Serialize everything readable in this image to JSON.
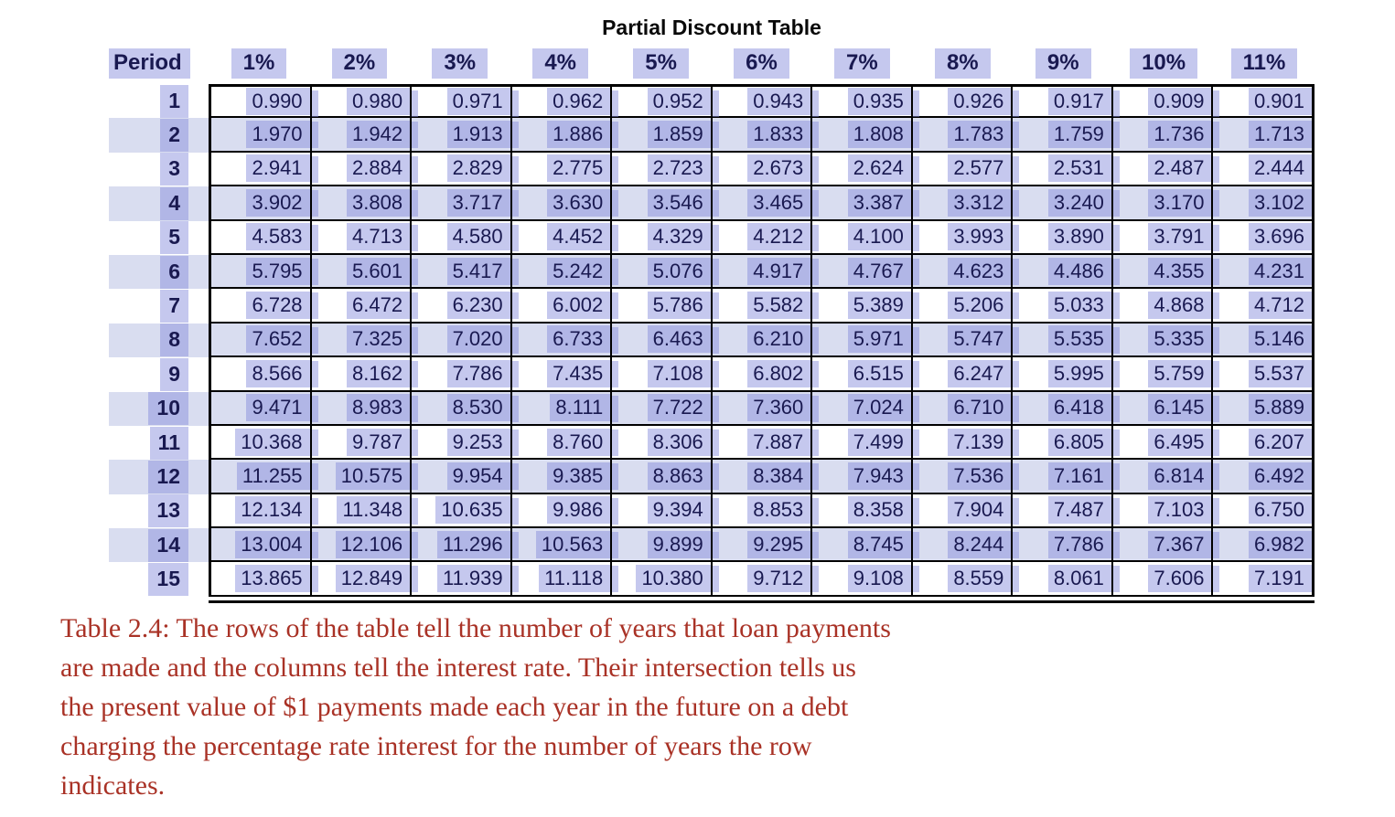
{
  "title": "Partial Discount Table",
  "table": {
    "period_header": "Period",
    "rate_headers": [
      "1%",
      "2%",
      "3%",
      "4%",
      "5%",
      "6%",
      "7%",
      "8%",
      "9%",
      "10%",
      "11%"
    ],
    "rows": [
      {
        "period": "1",
        "values": [
          "0.990",
          "0.980",
          "0.971",
          "0.962",
          "0.952",
          "0.943",
          "0.935",
          "0.926",
          "0.917",
          "0.909",
          "0.901"
        ]
      },
      {
        "period": "2",
        "values": [
          "1.970",
          "1.942",
          "1.913",
          "1.886",
          "1.859",
          "1.833",
          "1.808",
          "1.783",
          "1.759",
          "1.736",
          "1.713"
        ]
      },
      {
        "period": "3",
        "values": [
          "2.941",
          "2.884",
          "2.829",
          "2.775",
          "2.723",
          "2.673",
          "2.624",
          "2.577",
          "2.531",
          "2.487",
          "2.444"
        ]
      },
      {
        "period": "4",
        "values": [
          "3.902",
          "3.808",
          "3.717",
          "3.630",
          "3.546",
          "3.465",
          "3.387",
          "3.312",
          "3.240",
          "3.170",
          "3.102"
        ]
      },
      {
        "period": "5",
        "values": [
          "4.583",
          "4.713",
          "4.580",
          "4.452",
          "4.329",
          "4.212",
          "4.100",
          "3.993",
          "3.890",
          "3.791",
          "3.696"
        ]
      },
      {
        "period": "6",
        "values": [
          "5.795",
          "5.601",
          "5.417",
          "5.242",
          "5.076",
          "4.917",
          "4.767",
          "4.623",
          "4.486",
          "4.355",
          "4.231"
        ]
      },
      {
        "period": "7",
        "values": [
          "6.728",
          "6.472",
          "6.230",
          "6.002",
          "5.786",
          "5.582",
          "5.389",
          "5.206",
          "5.033",
          "4.868",
          "4.712"
        ]
      },
      {
        "period": "8",
        "values": [
          "7.652",
          "7.325",
          "7.020",
          "6.733",
          "6.463",
          "6.210",
          "5.971",
          "5.747",
          "5.535",
          "5.335",
          "5.146"
        ]
      },
      {
        "period": "9",
        "values": [
          "8.566",
          "8.162",
          "7.786",
          "7.435",
          "7.108",
          "6.802",
          "6.515",
          "6.247",
          "5.995",
          "5.759",
          "5.537"
        ]
      },
      {
        "period": "10",
        "values": [
          "9.471",
          "8.983",
          "8.530",
          "8.111",
          "7.722",
          "7.360",
          "7.024",
          "6.710",
          "6.418",
          "6.145",
          "5.889"
        ]
      },
      {
        "period": "11",
        "values": [
          "10.368",
          "9.787",
          "9.253",
          "8.760",
          "8.306",
          "7.887",
          "7.499",
          "7.139",
          "6.805",
          "6.495",
          "6.207"
        ]
      },
      {
        "period": "12",
        "values": [
          "11.255",
          "10.575",
          "9.954",
          "9.385",
          "8.863",
          "8.384",
          "7.943",
          "7.536",
          "7.161",
          "6.814",
          "6.492"
        ]
      },
      {
        "period": "13",
        "values": [
          "12.134",
          "11.348",
          "10.635",
          "9.986",
          "9.394",
          "8.853",
          "8.358",
          "7.904",
          "7.487",
          "7.103",
          "6.750"
        ]
      },
      {
        "period": "14",
        "values": [
          "13.004",
          "12.106",
          "11.296",
          "10.563",
          "9.899",
          "9.295",
          "8.745",
          "8.244",
          "7.786",
          "7.367",
          "6.982"
        ]
      },
      {
        "period": "15",
        "values": [
          "13.865",
          "12.849",
          "11.939",
          "11.118",
          "10.380",
          "9.712",
          "9.108",
          "8.559",
          "8.061",
          "7.606",
          "7.191"
        ]
      }
    ]
  },
  "caption": {
    "lines": [
      "Table 2.4: The rows of the table tell the number of years that loan payments",
      "are made and the columns tell the interest rate. Their intersection tells us",
      "the present value of $1 payments made each year in the future on a debt",
      "charging the percentage rate interest for the number of years the row",
      "indicates."
    ]
  },
  "colors": {
    "highlight": "rgba(133,140,219,0.48)",
    "row_band": "#d9ddf0",
    "value_text": "#191950",
    "caption_text": "#a93226",
    "border": "#000000"
  }
}
